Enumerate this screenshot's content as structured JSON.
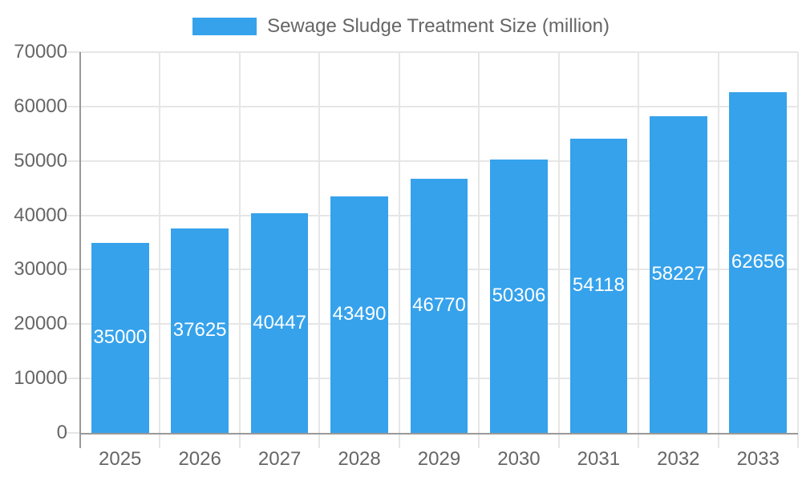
{
  "legend": {
    "label": "Sewage Sludge Treatment Size (million)"
  },
  "chart_data": {
    "type": "bar",
    "title": "Sewage Sludge Treatment Size (million)",
    "series_name": "Sewage Sludge Treatment Size (million)",
    "categories": [
      "2025",
      "2026",
      "2027",
      "2028",
      "2029",
      "2030",
      "2031",
      "2032",
      "2033"
    ],
    "values": [
      35000,
      37625,
      40447,
      43490,
      46770,
      50306,
      54118,
      58227,
      62656
    ],
    "bar_value_labels": [
      "35000",
      "37625",
      "40447",
      "43490",
      "46770",
      "50306",
      "54118",
      "58227",
      "62656"
    ],
    "xlabel": "",
    "ylabel": "",
    "ylim": [
      0,
      70000
    ],
    "ytick_step": 10000,
    "y_tick_labels": [
      "0",
      "10000",
      "20000",
      "30000",
      "40000",
      "50000",
      "60000",
      "70000"
    ],
    "grid": true,
    "legend_position": "top",
    "bar_label_position": "inside-middle",
    "colors": {
      "bar": "#36A2EB",
      "bar_label_text": "#ffffff",
      "axis_text": "#666666",
      "gridline": "#e6e6e6",
      "tick_mark": "#dddddd",
      "axis_line": "#999999",
      "background": "#ffffff"
    }
  }
}
